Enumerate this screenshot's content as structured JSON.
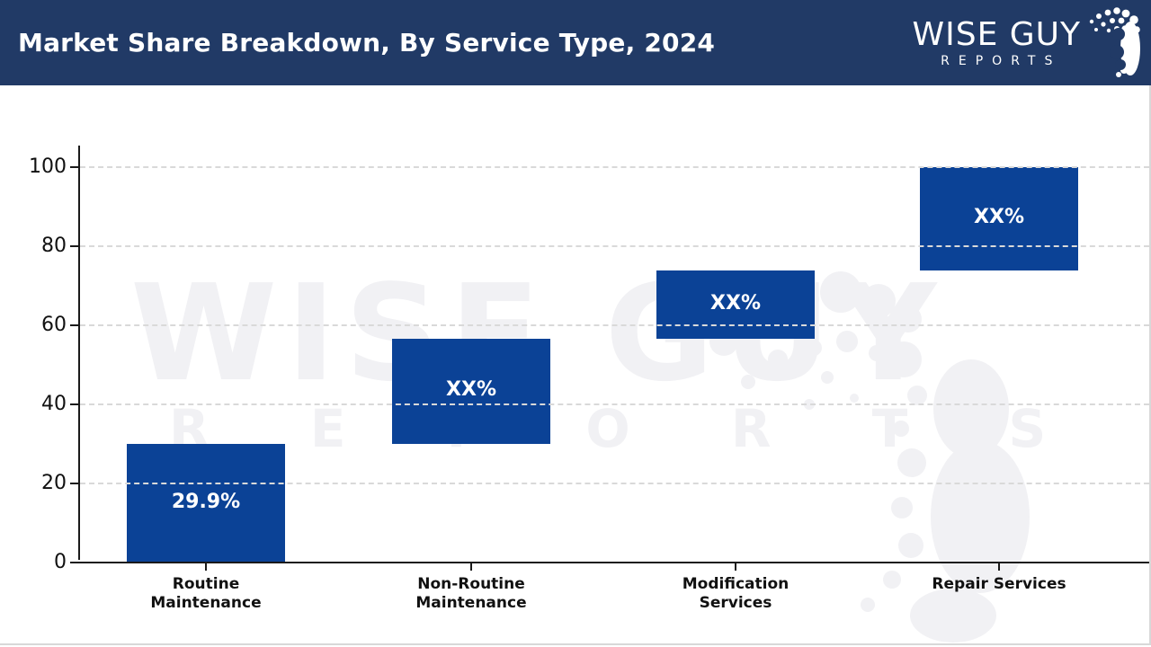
{
  "header": {
    "title": "Market Share Breakdown, By Service Type, 2024",
    "logo": {
      "brand": "WISE GUY",
      "sub": "REPORTS"
    }
  },
  "watermark": {
    "brand": "WISE GUY",
    "sub": "R E P O R T S"
  },
  "chart_data": {
    "type": "bar",
    "subtype": "waterfall",
    "title": "Market Share Breakdown, By Service Type, 2024",
    "categories": [
      [
        "Routine",
        "Maintenance"
      ],
      [
        "Non-Routine",
        "Maintenance"
      ],
      [
        "Modification",
        "Services"
      ],
      [
        "Repair Services"
      ]
    ],
    "bars": [
      {
        "category": "Routine Maintenance",
        "from": 0,
        "to": 29.9,
        "label": "29.9%"
      },
      {
        "category": "Non-Routine Maintenance",
        "from": 29.9,
        "to": 56.7,
        "label": "XX%"
      },
      {
        "category": "Modification Services",
        "from": 56.7,
        "to": 73.9,
        "label": "XX%"
      },
      {
        "category": "Repair Services",
        "from": 73.9,
        "to": 100,
        "label": "XX%"
      }
    ],
    "ylim": [
      0,
      100
    ],
    "yticks": [
      0,
      20,
      40,
      60,
      80,
      100
    ],
    "xlabel": "",
    "ylabel": "",
    "grid": "horizontal-dashed",
    "legend": "none",
    "bar_color": "#0b4296"
  },
  "colors": {
    "header_bg": "#213a66",
    "bar": "#0b4296",
    "axis": "#1a1a1a",
    "grid": "#d9d9d9",
    "watermark": "#f1f1f4",
    "title_text": "#ffffff"
  }
}
